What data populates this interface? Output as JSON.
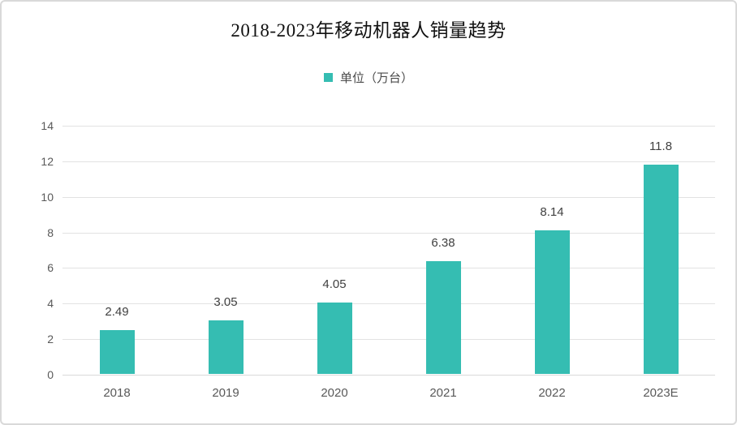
{
  "title": "2018-2023年移动机器人销量趋势",
  "legend": {
    "label": "单位（万台）",
    "marker_color": "#35bdb2"
  },
  "colors": {
    "bar": "#35bdb2",
    "gridline": "#e2e2e2",
    "axis_text": "#595959",
    "value_text": "#404040",
    "title_text": "#111111"
  },
  "chart_data": {
    "type": "bar",
    "title": "2018-2023年移动机器人销量趋势",
    "categories": [
      "2018",
      "2019",
      "2020",
      "2021",
      "2022",
      "2023E"
    ],
    "values": [
      2.49,
      3.05,
      4.05,
      6.38,
      8.14,
      11.8
    ],
    "value_labels": [
      "2.49",
      "3.05",
      "4.05",
      "6.38",
      "8.14",
      "11.8"
    ],
    "series_name": "单位（万台）",
    "xlabel": "",
    "ylabel": "",
    "ylim": [
      0,
      14
    ],
    "yticks": [
      0,
      2,
      4,
      6,
      8,
      10,
      12,
      14
    ],
    "grid": true,
    "legend_entries": [
      "单位（万台）"
    ],
    "legend_position": "top-center",
    "bar_color": "#35bdb2"
  }
}
